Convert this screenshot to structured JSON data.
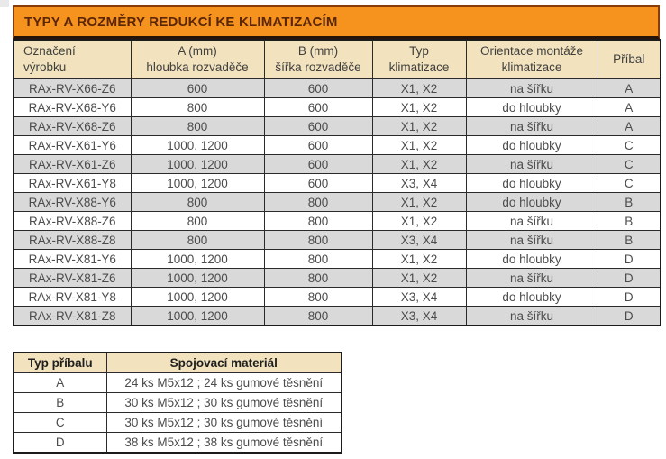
{
  "title": "TYPY A ROZMĚRY REDUKCÍ KE KLIMATIZACÍM",
  "colors": {
    "accent_orange": "#F6921E",
    "header_cream": "#F2E3BE",
    "stripe_grey": "#D9D9D9",
    "title_text": "#5B2606",
    "border_dark": "#1C1C1C"
  },
  "main_table": {
    "headers": [
      "Označení\nvýrobku",
      "A (mm)\nhloubka rozvaděče",
      "B (mm)\nšířka rozvaděče",
      "Typ\nklimatizace",
      "Orientace montáže\nklimatizace",
      "Příbal"
    ],
    "rows": [
      [
        "RAx-RV-X66-Z6",
        "600",
        "600",
        "X1, X2",
        "na šířku",
        "A"
      ],
      [
        "RAx-RV-X68-Y6",
        "800",
        "600",
        "X1, X2",
        "do hloubky",
        "A"
      ],
      [
        "RAx-RV-X68-Z6",
        "800",
        "600",
        "X1, X2",
        "na šířku",
        "A"
      ],
      [
        "RAx-RV-X61-Y6",
        "1000, 1200",
        "600",
        "X1, X2",
        "do hloubky",
        "C"
      ],
      [
        "RAx-RV-X61-Z6",
        "1000, 1200",
        "600",
        "X1, X2",
        "na šířku",
        "C"
      ],
      [
        "RAx-RV-X61-Y8",
        "1000, 1200",
        "600",
        "X3, X4",
        "do hloubky",
        "C"
      ],
      [
        "RAx-RV-X88-Y6",
        "800",
        "800",
        "X1, X2",
        "do hloubky",
        "B"
      ],
      [
        "RAx-RV-X88-Z6",
        "800",
        "800",
        "X1, X2",
        "na šířku",
        "B"
      ],
      [
        "RAx-RV-X88-Z8",
        "800",
        "800",
        "X3, X4",
        "na šířku",
        "B"
      ],
      [
        "RAx-RV-X81-Y6",
        "1000, 1200",
        "800",
        "X1, X2",
        "do hloubky",
        "D"
      ],
      [
        "RAx-RV-X81-Z6",
        "1000, 1200",
        "800",
        "X1, X2",
        "na šířku",
        "D"
      ],
      [
        "RAx-RV-X81-Y8",
        "1000, 1200",
        "800",
        "X3, X4",
        "do hloubky",
        "D"
      ],
      [
        "RAx-RV-X81-Z8",
        "1000, 1200",
        "800",
        "X3, X4",
        "na šířku",
        "D"
      ]
    ]
  },
  "accessory_table": {
    "headers": [
      "Typ příbalu",
      "Spojovací materiál"
    ],
    "rows": [
      [
        "A",
        "24 ks M5x12 ; 24 ks gumové těsnění"
      ],
      [
        "B",
        "30 ks M5x12 ; 30 ks gumové těsnění"
      ],
      [
        "C",
        "30 ks M5x12 ; 30 ks gumové těsnění"
      ],
      [
        "D",
        "38 ks M5x12 ; 38 ks gumové těsnění"
      ]
    ]
  }
}
